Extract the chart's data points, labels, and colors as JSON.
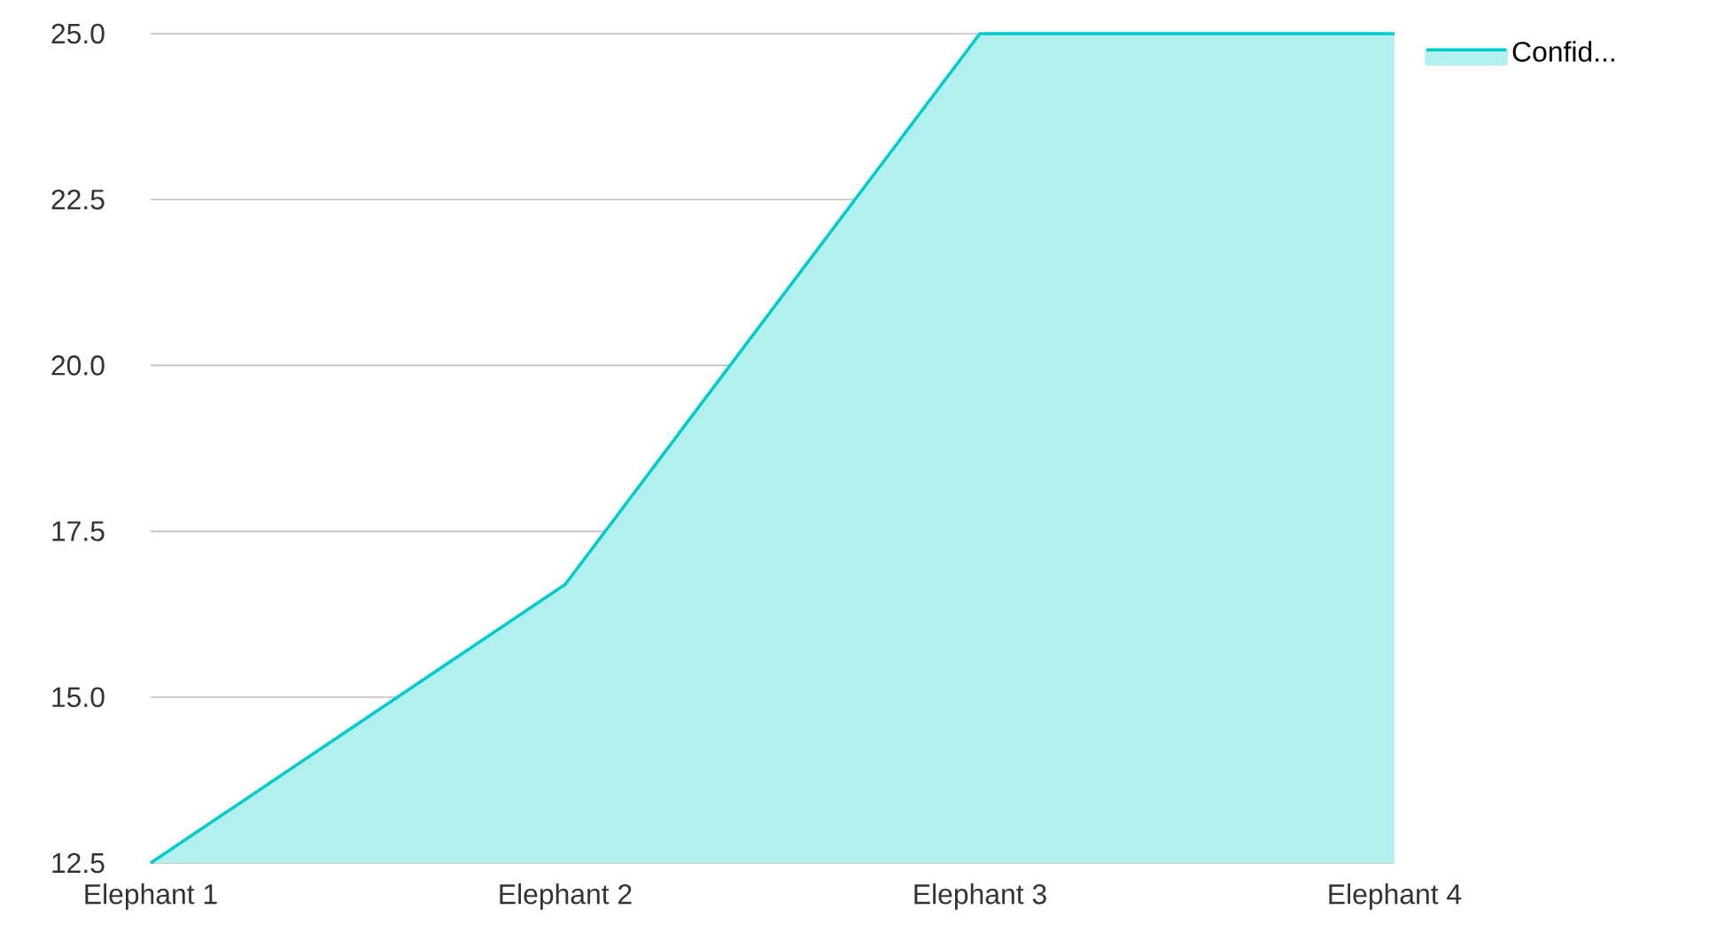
{
  "chart_data": {
    "type": "area",
    "categories": [
      "Elephant 1",
      "Elephant 2",
      "Elephant 3",
      "Elephant 4"
    ],
    "series": [
      {
        "name": "Confid...",
        "color": "#00cccc",
        "values": [
          12.5,
          16.7,
          25,
          25
        ]
      }
    ],
    "ylim": [
      12.5,
      25
    ],
    "yticks": [
      {
        "value": 12.5,
        "label": "12.5"
      },
      {
        "value": 15,
        "label": "15.0"
      },
      {
        "value": 17.5,
        "label": "17.5"
      },
      {
        "value": 20,
        "label": "20.0"
      },
      {
        "value": 22.5,
        "label": "22.5"
      },
      {
        "value": 25,
        "label": "25.0"
      }
    ],
    "grid": "y",
    "legend": "top right"
  }
}
